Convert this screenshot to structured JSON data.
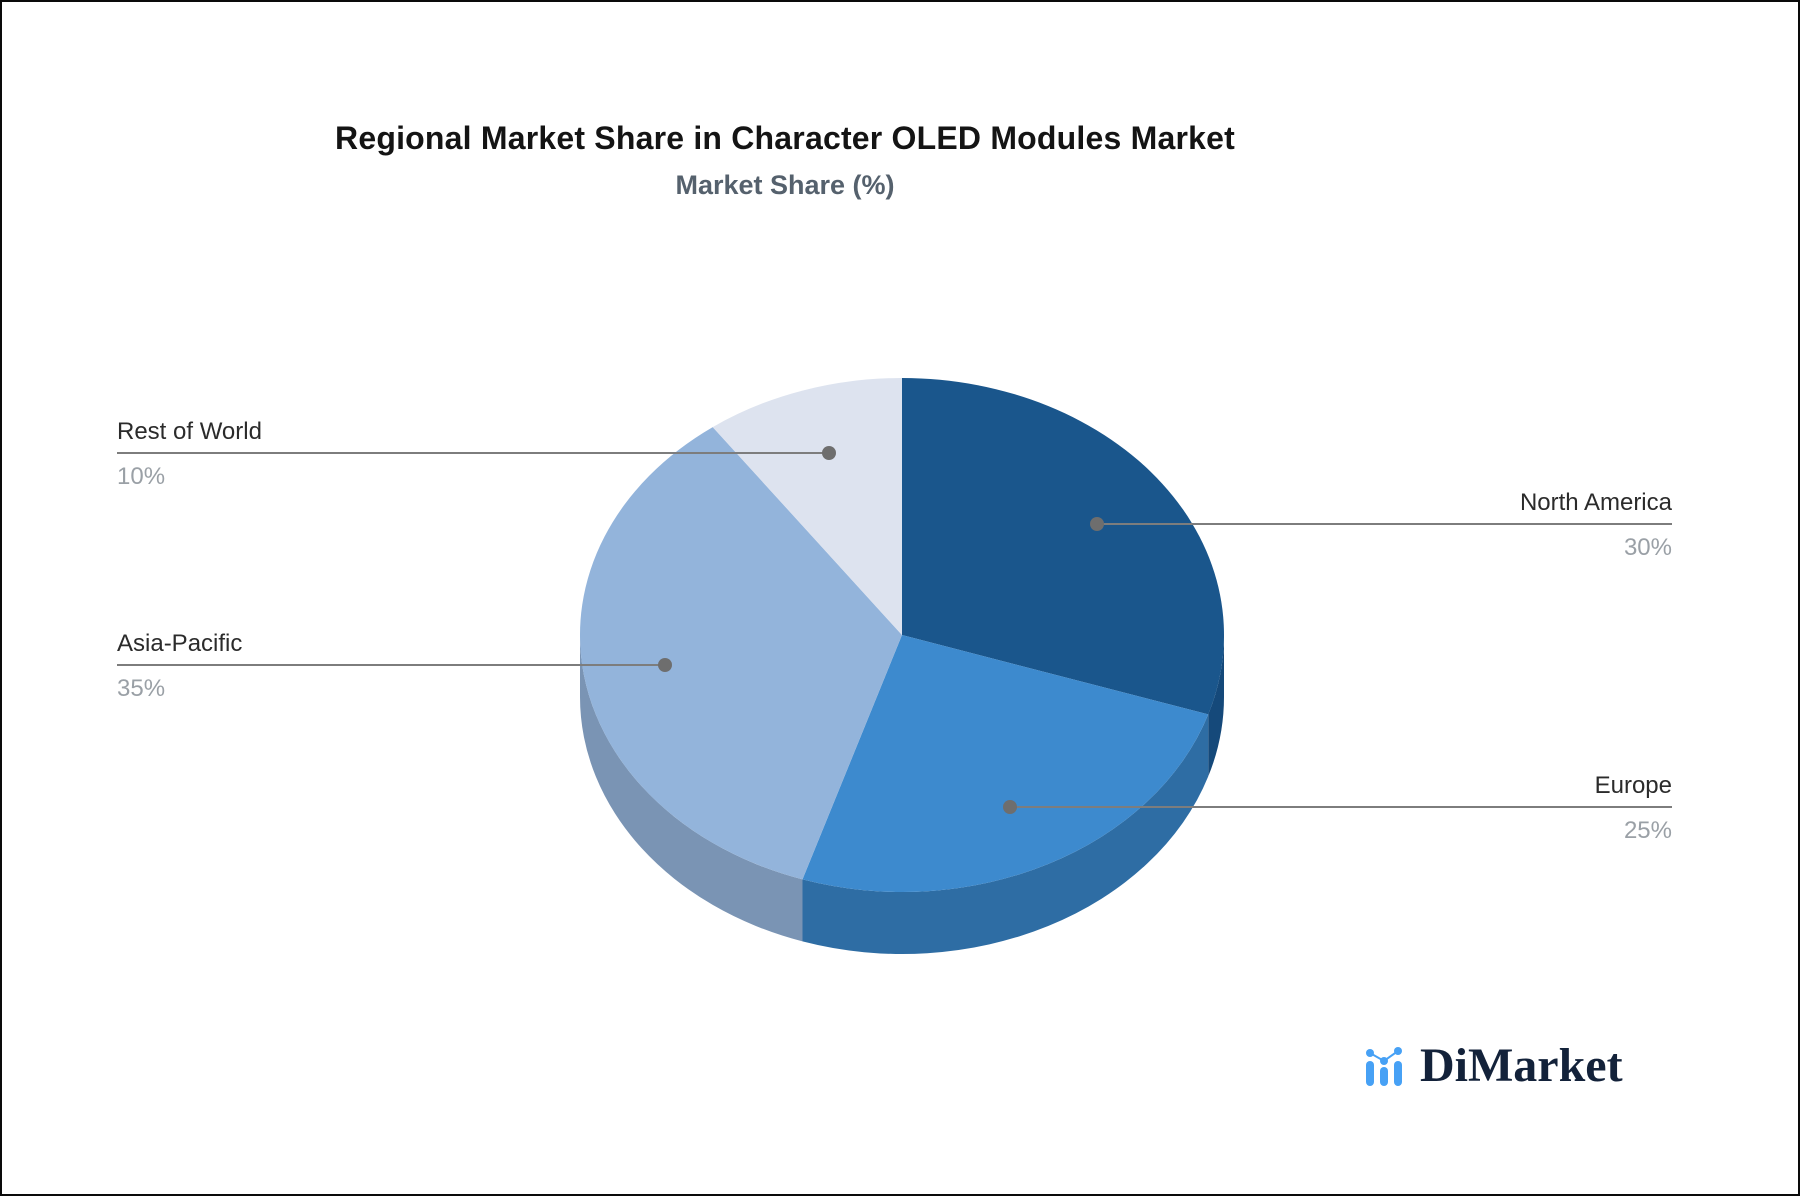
{
  "page": {
    "background": "#ffffff",
    "title": "Regional Market Share in Character OLED Modules Market",
    "subtitle": "Market Share (%)"
  },
  "chart_data": {
    "type": "pie",
    "style": "pie-3d",
    "title": "Regional Market Share in Character OLED Modules Market",
    "subtitle": "Market Share (%)",
    "unit": "%",
    "start_angle_deg": 0,
    "direction": "clockwise",
    "legend_position": "callout-labels",
    "slices": [
      {
        "label": "North America",
        "value": 30,
        "pct_label": "30%",
        "color": "#1a568c",
        "side_color": "#15497a",
        "callout_side": "right"
      },
      {
        "label": "Europe",
        "value": 25,
        "pct_label": "25%",
        "color": "#3d8ace",
        "side_color": "#2e6da4",
        "callout_side": "right"
      },
      {
        "label": "Asia-Pacific",
        "value": 35,
        "pct_label": "35%",
        "color": "#93b4db",
        "side_color": "#7a94b4",
        "callout_side": "left"
      },
      {
        "label": "Rest of World",
        "value": 10,
        "pct_label": "10%",
        "color": "#dde3ef",
        "side_color": "#c2cbdb",
        "callout_side": "left"
      }
    ],
    "colors": {
      "leader_line": "#7d7d7d",
      "leader_dot": "#6e6e6e",
      "label_text": "#2b2b2b",
      "pct_text": "#9aa0a6",
      "title_text": "#141414",
      "subtitle_text": "#55616d"
    }
  },
  "logo": {
    "text": "DiMarket",
    "color": "#13223a",
    "icon": "dimarket-bars-icon",
    "icon_color": "#47a1f5"
  }
}
